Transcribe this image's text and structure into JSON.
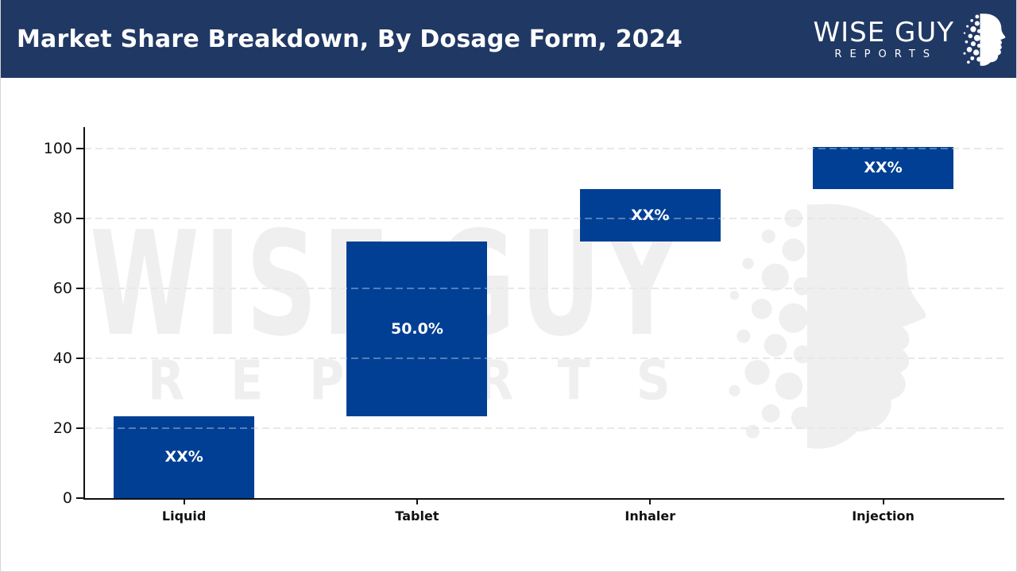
{
  "header": {
    "title": "Market Share Breakdown, By Dosage Form, 2024",
    "logo": {
      "wordmark": "WISE GUY",
      "subtext": "REPORTS",
      "head_icon": "dotted-face-profile"
    }
  },
  "watermark": {
    "wordmark": "WISE GUY",
    "subtext": "REPORTS",
    "head_icon": "dotted-face-profile"
  },
  "colors": {
    "header_bg": "#203864",
    "bar": "#003f94",
    "grid": "#dcdcdc",
    "axis": "#111111",
    "watermark": "#efefef",
    "bar_label_text": "#ffffff"
  },
  "chart_data": {
    "type": "bar",
    "subtype": "waterfall",
    "title": "Market Share Breakdown, By Dosage Form, 2024",
    "categories": [
      "Liquid",
      "Tablet",
      "Inhaler",
      "Injection"
    ],
    "segments": [
      {
        "category": "Liquid",
        "start": 0,
        "end": 23.5,
        "label": "XX%"
      },
      {
        "category": "Tablet",
        "start": 23.5,
        "end": 73.5,
        "label": "50.0%"
      },
      {
        "category": "Inhaler",
        "start": 73.5,
        "end": 88.5,
        "label": "XX%"
      },
      {
        "category": "Injection",
        "start": 88.5,
        "end": 100.5,
        "label": "XX%"
      }
    ],
    "yticks": [
      0,
      20,
      40,
      60,
      80,
      100
    ],
    "ylim": [
      0,
      106
    ],
    "xlabel": "",
    "ylabel": "",
    "grid": "horizontal-dashed",
    "legend": false
  }
}
